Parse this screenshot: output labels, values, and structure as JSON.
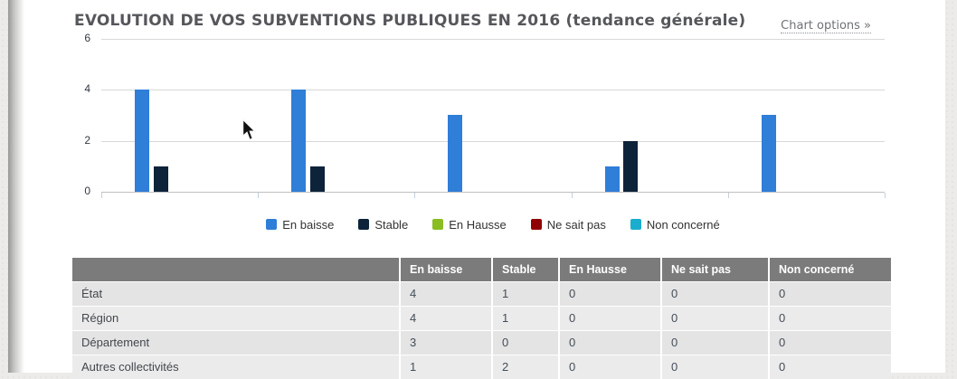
{
  "page": {
    "title": "EVOLUTION DE VOS SUBVENTIONS PUBLIQUES EN 2016 (tendance générale)",
    "chart_options_label": "Chart options »"
  },
  "chart_data": {
    "type": "bar",
    "title": "",
    "xlabel": "",
    "ylabel": "",
    "categories": [
      "État",
      "Région",
      "Département",
      "Autres collectivités",
      ""
    ],
    "series": [
      {
        "name": "En baisse",
        "color": "#2f7ed8",
        "values": [
          4,
          4,
          3,
          1,
          3
        ]
      },
      {
        "name": "Stable",
        "color": "#0d233a",
        "values": [
          1,
          1,
          0,
          2,
          0
        ]
      },
      {
        "name": "En Hausse",
        "color": "#8bbc21",
        "values": [
          0,
          0,
          0,
          0,
          0
        ]
      },
      {
        "name": "Ne sait pas",
        "color": "#910000",
        "values": [
          0,
          0,
          0,
          0,
          0
        ]
      },
      {
        "name": "Non concerné",
        "color": "#1aadce",
        "values": [
          0,
          0,
          0,
          0,
          0
        ]
      }
    ],
    "ylim": [
      0,
      6
    ],
    "yticks": [
      0,
      2,
      4,
      6
    ],
    "grid": true,
    "legend_position": "bottom",
    "x_axis_labels_visible": false
  },
  "table": {
    "headers": [
      "",
      "En baisse",
      "Stable",
      "En Hausse",
      "Ne sait pas",
      "Non concerné"
    ],
    "rows": [
      {
        "label": "État",
        "values": [
          4,
          1,
          0,
          0,
          0
        ]
      },
      {
        "label": "Région",
        "values": [
          4,
          1,
          0,
          0,
          0
        ]
      },
      {
        "label": "Département",
        "values": [
          3,
          0,
          0,
          0,
          0
        ]
      },
      {
        "label": "Autres collectivités",
        "values": [
          1,
          2,
          0,
          0,
          0
        ]
      }
    ]
  }
}
